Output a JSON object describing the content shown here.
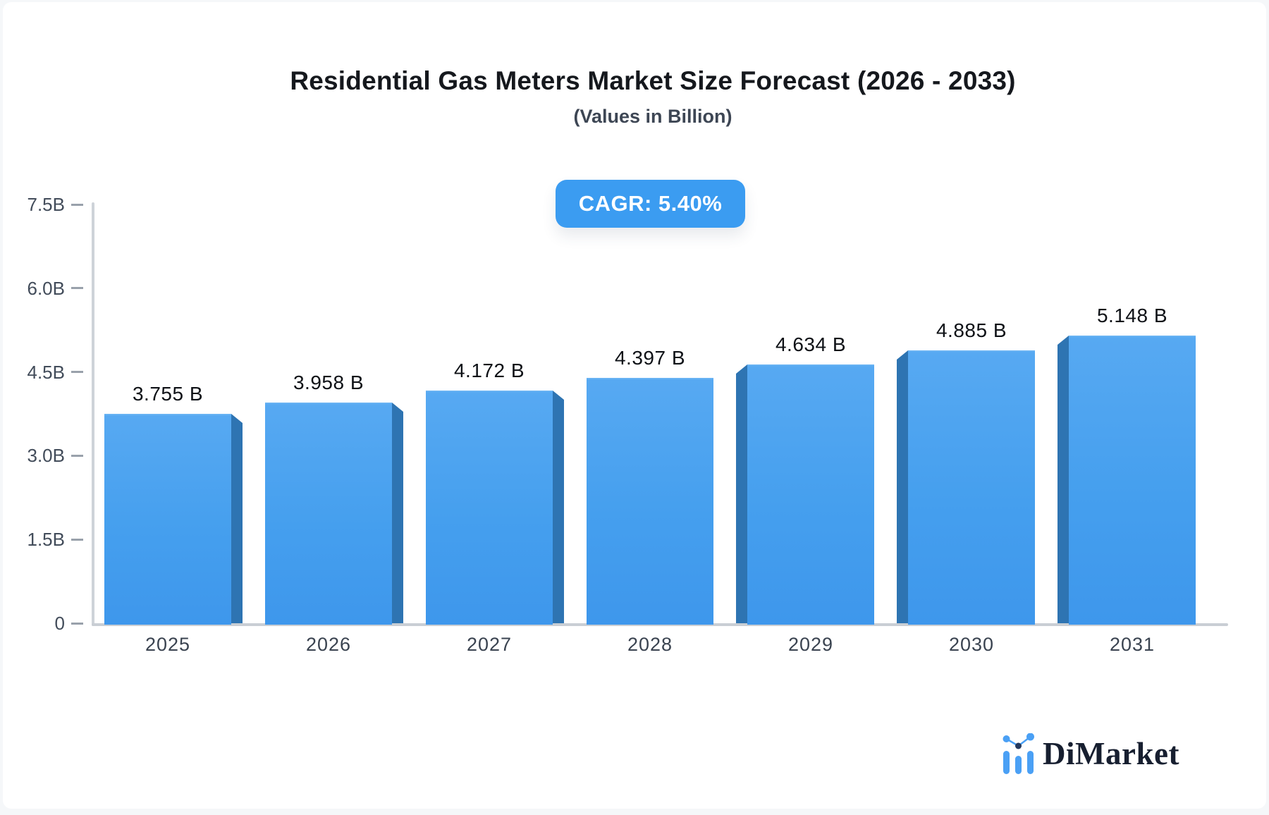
{
  "page": {
    "background": "#f5f7f9",
    "card_background": "#ffffff"
  },
  "header": {
    "title": "Residential Gas Meters Market Size Forecast (2026 - 2033)",
    "subtitle": "(Values in Billion)",
    "cagr_badge_label": "CAGR: 5.40%",
    "cagr_badge_color": "#3b9cf1"
  },
  "chart_data": {
    "type": "bar",
    "title": "Residential Gas Meters Market Size Forecast (2026 - 2033)",
    "subtitle": "(Values in Billion)",
    "xlabel": "",
    "ylabel": "",
    "unit": "Billion",
    "categories": [
      "2025",
      "2026",
      "2027",
      "2028",
      "2029",
      "2030",
      "2031"
    ],
    "values": [
      3.755,
      3.958,
      4.172,
      4.397,
      4.634,
      4.885,
      5.148
    ],
    "value_labels": [
      "3.755 B",
      "3.958 B",
      "4.172 B",
      "4.397 B",
      "4.634 B",
      "4.885 B",
      "5.148 B"
    ],
    "ylim": [
      0,
      7.5
    ],
    "y_ticks": [
      {
        "value": 0,
        "label": "0"
      },
      {
        "value": 1.5,
        "label": "1.5B"
      },
      {
        "value": 3.0,
        "label": "3.0B"
      },
      {
        "value": 4.5,
        "label": "4.5B"
      },
      {
        "value": 6.0,
        "label": "6.0B"
      },
      {
        "value": 7.5,
        "label": "7.5B"
      }
    ],
    "grid": "off",
    "legend": "none",
    "bar_color_top": "#57a9f2",
    "bar_color_bottom": "#3e97ec",
    "bar_side_color": "#2e74b2"
  },
  "footer": {
    "logo_text": "DiMarket",
    "logo_text_color": "#171f30",
    "logo_icon": "bar-chart-with-trendline-icon",
    "logo_icon_color": "#4aa0f5",
    "logo_icon_dot_color": "#24395e"
  }
}
